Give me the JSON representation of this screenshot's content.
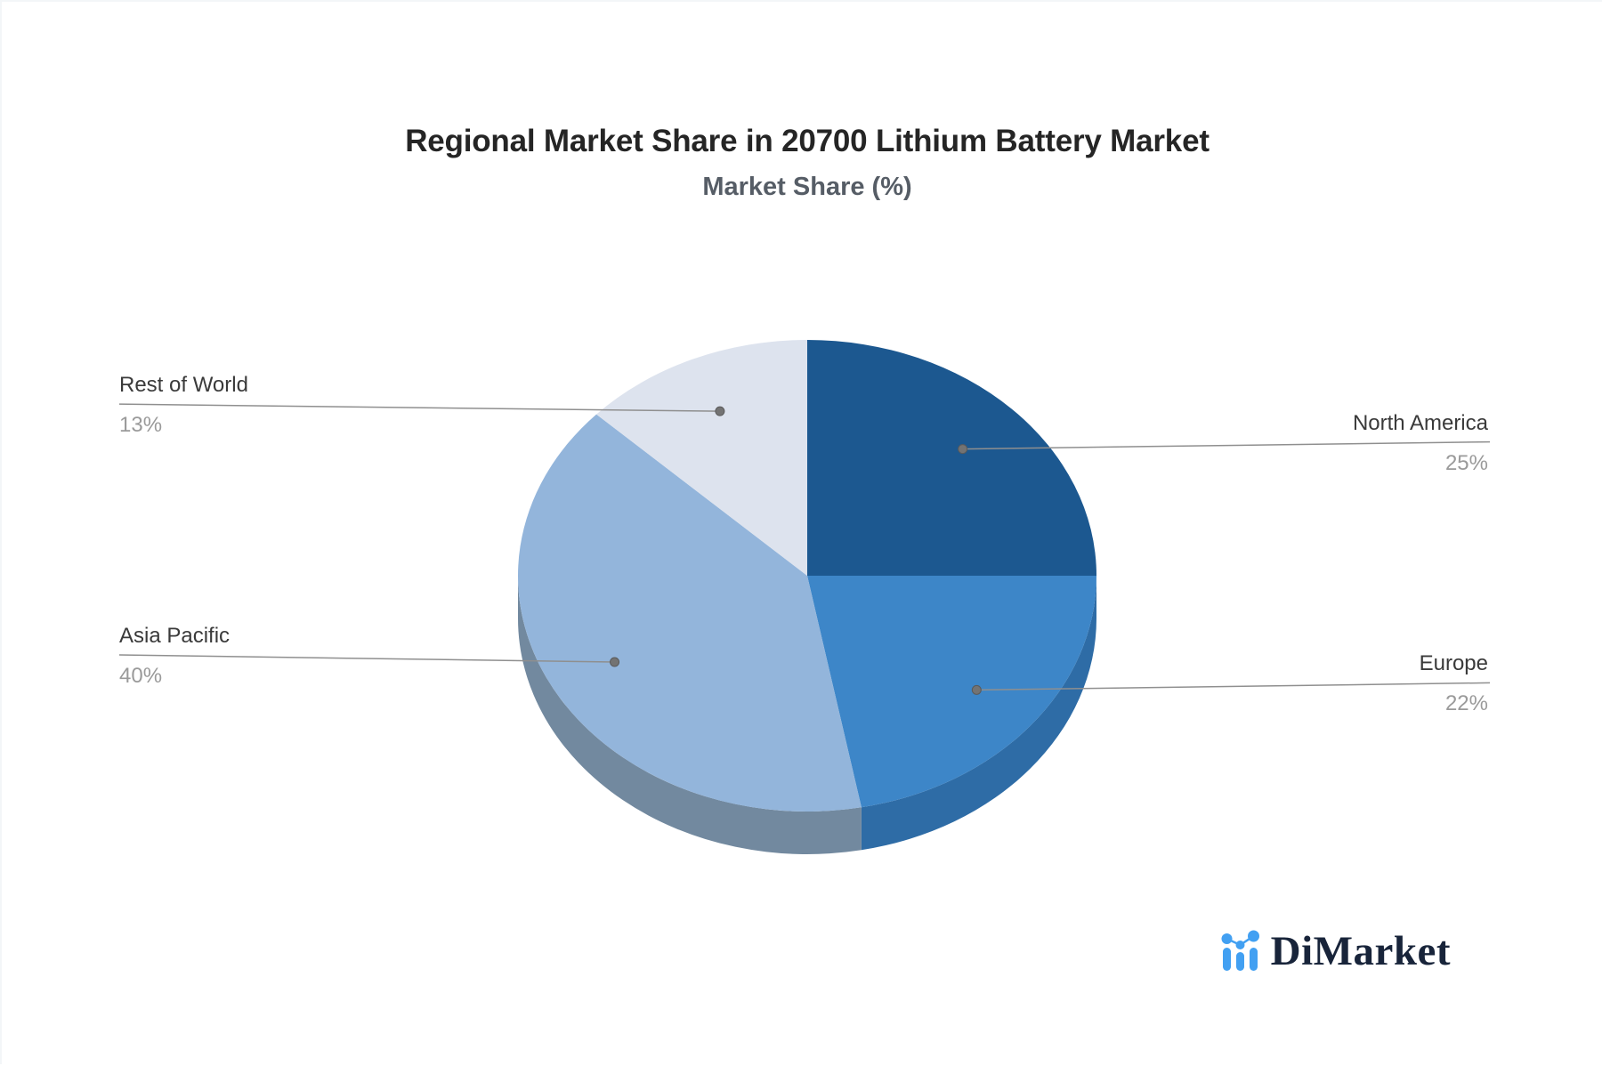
{
  "header": {
    "title": "Regional Market Share in 20700 Lithium Battery Market",
    "subtitle": "Market Share (%)"
  },
  "chart_data": {
    "type": "pie",
    "style": "3d",
    "title": "Regional Market Share in 20700 Lithium Battery Market",
    "subtitle": "Market Share (%)",
    "unit": "%",
    "legend_position": "callout-labels",
    "start_angle_deg": 0,
    "direction": "clockwise",
    "slices": [
      {
        "label": "North America",
        "value": 25,
        "display": "25%",
        "color": "#1c5890",
        "depth_color": "#15416b",
        "side": "right"
      },
      {
        "label": "Europe",
        "value": 22,
        "display": "22%",
        "color": "#3d86c8",
        "depth_color": "#2e6ca6",
        "side": "right"
      },
      {
        "label": "Asia Pacific",
        "value": 40,
        "display": "40%",
        "color": "#93b5db",
        "depth_color": "#72899f",
        "side": "left"
      },
      {
        "label": "Rest of World",
        "value": 13,
        "display": "13%",
        "color": "#dde3ee",
        "depth_color": "#b9c3d2",
        "side": "left"
      }
    ]
  },
  "callout_style": {
    "label_color": "#3a3a3a",
    "percent_color": "#9a9a9a",
    "line_color": "#8f8f8f",
    "dot_color": "#737373"
  },
  "logo": {
    "text": "DiMarket",
    "icon": "bar-chart-icon",
    "icon_color": "#42a0f2",
    "text_color": "#18243a"
  }
}
